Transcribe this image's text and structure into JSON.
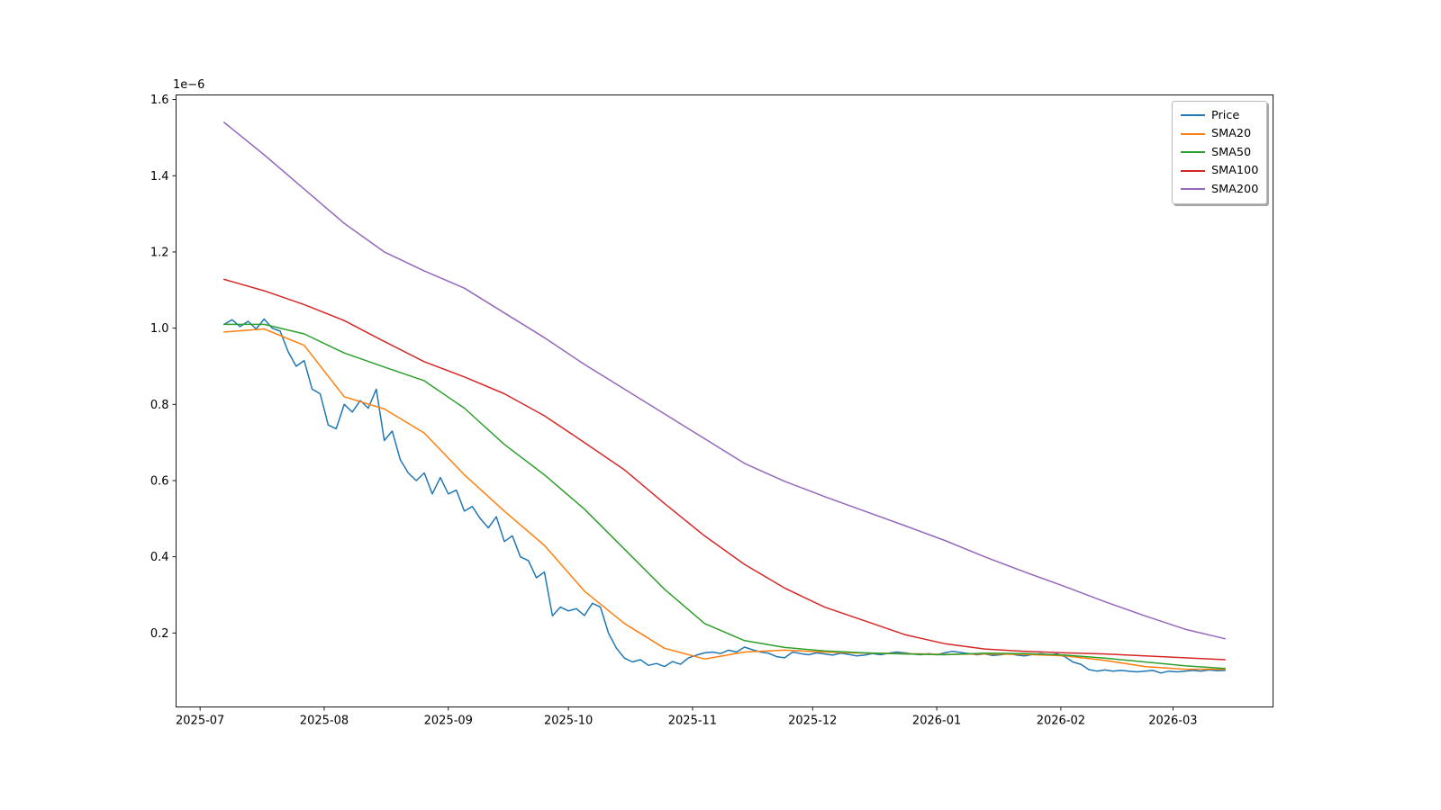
{
  "figure": {
    "background_color": "#ffffff",
    "title": ""
  },
  "chart_data": {
    "type": "line",
    "title": "",
    "xlabel": "",
    "ylabel": "",
    "y_offset_text": "1e−6",
    "y_unit_multiplier": "1e-6",
    "grid": false,
    "legend_position": "upper right",
    "legend_entries": [
      "Price",
      "SMA20",
      "SMA50",
      "SMA100",
      "SMA200"
    ],
    "y_ticks": [
      0.2,
      0.4,
      0.6,
      0.8,
      1.0,
      1.2,
      1.4,
      1.6
    ],
    "ylim": [
      0.006,
      1.612
    ],
    "x_tick_labels": [
      "2025-07",
      "2025-08",
      "2025-09",
      "2025-10",
      "2025-11",
      "2025-12",
      "2026-01",
      "2026-02",
      "2026-03"
    ],
    "x_tick_days": [
      0,
      31,
      62,
      92,
      123,
      153,
      184,
      215,
      243
    ],
    "xlim_days": [
      -6,
      268
    ],
    "x_unit": "days since 2025-07-01",
    "series": [
      {
        "name": "Price",
        "color": "#1f77b4",
        "t0": 6,
        "dt": 2,
        "values": [
          1.01,
          1.022,
          1.004,
          1.018,
          0.998,
          1.024,
          1.0,
          0.992,
          0.938,
          0.9,
          0.915,
          0.84,
          0.828,
          0.746,
          0.736,
          0.8,
          0.78,
          0.81,
          0.79,
          0.84,
          0.705,
          0.73,
          0.655,
          0.62,
          0.6,
          0.62,
          0.565,
          0.608,
          0.565,
          0.575,
          0.52,
          0.532,
          0.5,
          0.476,
          0.505,
          0.44,
          0.455,
          0.4,
          0.39,
          0.345,
          0.36,
          0.245,
          0.268,
          0.258,
          0.264,
          0.246,
          0.278,
          0.268,
          0.2,
          0.16,
          0.134,
          0.124,
          0.13,
          0.115,
          0.12,
          0.112,
          0.125,
          0.118,
          0.135,
          0.142,
          0.148,
          0.15,
          0.146,
          0.155,
          0.15,
          0.163,
          0.156,
          0.15,
          0.147,
          0.138,
          0.135,
          0.15,
          0.146,
          0.143,
          0.148,
          0.145,
          0.142,
          0.147,
          0.144,
          0.14,
          0.142,
          0.146,
          0.143,
          0.147,
          0.15,
          0.148,
          0.145,
          0.143,
          0.146,
          0.143,
          0.148,
          0.152,
          0.149,
          0.146,
          0.143,
          0.145,
          0.141,
          0.143,
          0.146,
          0.142,
          0.14,
          0.144,
          0.146,
          0.142,
          0.145,
          0.138,
          0.124,
          0.118,
          0.104,
          0.1,
          0.103,
          0.1,
          0.102,
          0.1,
          0.098,
          0.1,
          0.102,
          0.095,
          0.1,
          0.098,
          0.1,
          0.102,
          0.1,
          0.103,
          0.101,
          0.102
        ]
      },
      {
        "name": "SMA20",
        "color": "#ff7f0e",
        "t0": 6,
        "dt": 10,
        "values": [
          0.99,
          0.998,
          0.955,
          0.82,
          0.788,
          0.725,
          0.615,
          0.52,
          0.43,
          0.31,
          0.225,
          0.16,
          0.132,
          0.15,
          0.155,
          0.15,
          0.147,
          0.146,
          0.144,
          0.145,
          0.144,
          0.14,
          0.128,
          0.112,
          0.105,
          0.105
        ]
      },
      {
        "name": "SMA50",
        "color": "#2ca02c",
        "t0": 6,
        "dt": 10,
        "values": [
          1.01,
          1.01,
          0.985,
          0.935,
          0.898,
          0.862,
          0.79,
          0.695,
          0.615,
          0.525,
          0.42,
          0.315,
          0.225,
          0.18,
          0.162,
          0.153,
          0.148,
          0.145,
          0.143,
          0.147,
          0.146,
          0.142,
          0.134,
          0.124,
          0.114,
          0.107
        ]
      },
      {
        "name": "SMA100",
        "color": "#d62728",
        "t0": 6,
        "dt": 10,
        "values": [
          1.128,
          1.098,
          1.062,
          1.02,
          0.965,
          0.912,
          0.872,
          0.828,
          0.77,
          0.7,
          0.628,
          0.54,
          0.455,
          0.38,
          0.318,
          0.268,
          0.232,
          0.196,
          0.172,
          0.158,
          0.152,
          0.148,
          0.145,
          0.14,
          0.135,
          0.13
        ]
      },
      {
        "name": "SMA200",
        "color": "#9467bd",
        "t0": 6,
        "dt": 10,
        "values": [
          1.54,
          1.455,
          1.365,
          1.275,
          1.2,
          1.15,
          1.105,
          1.04,
          0.975,
          0.905,
          0.84,
          0.775,
          0.71,
          0.645,
          0.598,
          0.558,
          0.52,
          0.482,
          0.443,
          0.4,
          0.36,
          0.322,
          0.282,
          0.245,
          0.21,
          0.185
        ]
      }
    ]
  }
}
